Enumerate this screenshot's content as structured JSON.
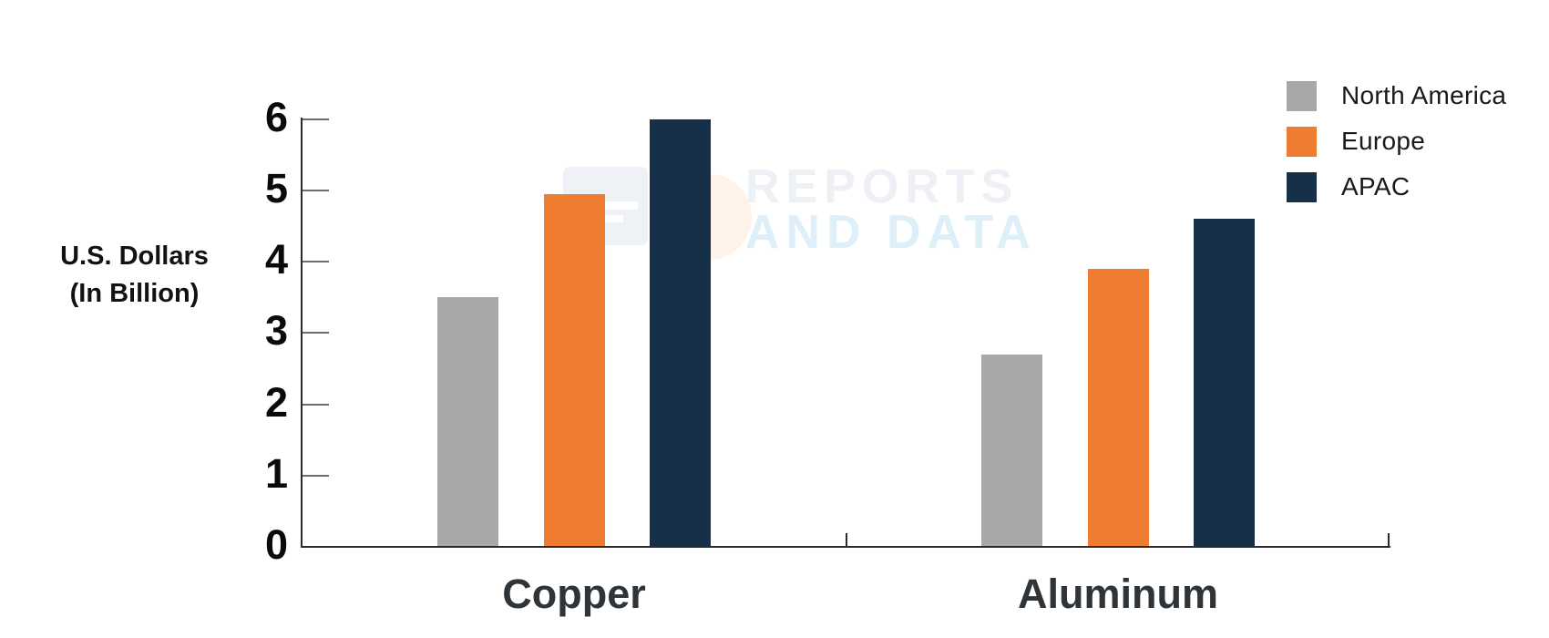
{
  "chart_data": {
    "type": "bar",
    "categories": [
      "Copper",
      "Aluminum"
    ],
    "series": [
      {
        "name": "North America",
        "color": "#a8a8a8",
        "values": [
          3.5,
          2.7
        ]
      },
      {
        "name": "Europe",
        "color": "#ee7c31",
        "values": [
          4.95,
          3.9
        ]
      },
      {
        "name": "APAC",
        "color": "#16304a",
        "values": [
          6.0,
          4.6
        ]
      }
    ],
    "title": "",
    "xlabel": "",
    "ylabel": "U.S. Dollars (In Billion)",
    "ylabel_lines": [
      "U.S. Dollars",
      "(In Billion)"
    ],
    "ylim": [
      0,
      6
    ],
    "yticks": [
      0,
      1,
      2,
      3,
      4,
      5,
      6
    ],
    "grid": false,
    "legend_position": "top-right"
  },
  "watermark": {
    "line1": "REPORTS",
    "line2": "AND DATA"
  },
  "colors": {
    "axis": "#2b2b2b",
    "tick": "#6e6e6e",
    "tick_label": "#0a0a0a",
    "category_label": "#2f3439",
    "legend_label": "#17191c"
  }
}
